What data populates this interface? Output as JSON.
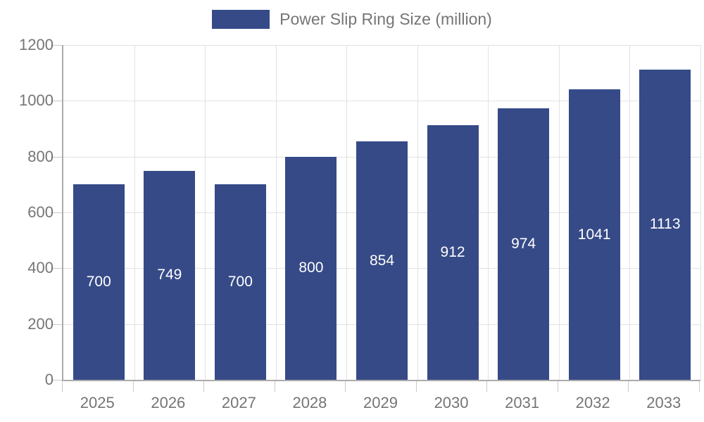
{
  "chart_data": {
    "type": "bar",
    "series_name": "Power Slip Ring Size (million)",
    "categories": [
      "2025",
      "2026",
      "2027",
      "2028",
      "2029",
      "2030",
      "2031",
      "2032",
      "2033"
    ],
    "values": [
      700,
      749,
      700,
      800,
      854,
      912,
      974,
      1041,
      1113
    ],
    "title": "Power Slip Ring Size (million)",
    "xlabel": "",
    "ylabel": "",
    "ylim": [
      0,
      1200
    ],
    "ytick_step": 200,
    "grid": true,
    "legend_position": "top",
    "value_labels": "inside-center"
  },
  "colors": {
    "bar": "#364A87",
    "axis_text": "#757575",
    "value_label_text": "#FFFFFF",
    "gridline": "#E2E2E2",
    "axis_line": "#ABABAB",
    "tick_mark": "#C9C9C9"
  }
}
